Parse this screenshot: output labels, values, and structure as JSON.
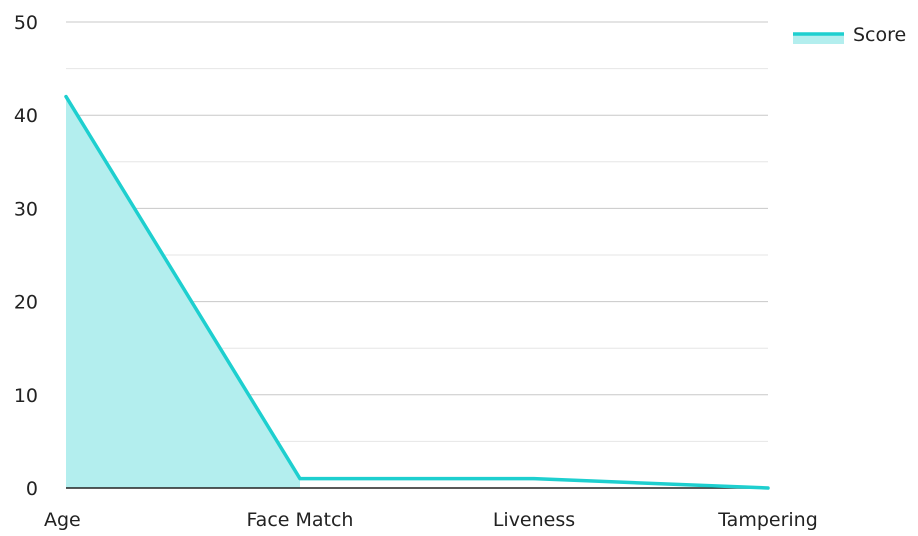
{
  "chart_data": {
    "type": "area",
    "title": "",
    "xlabel": "",
    "ylabel": "",
    "categories": [
      "Age",
      "Face Match",
      "Liveness",
      "Tampering"
    ],
    "series": [
      {
        "name": "Score",
        "values": [
          42,
          1,
          1,
          0
        ]
      }
    ],
    "ylim": [
      0,
      50
    ],
    "y_ticks": [
      "0",
      "10",
      "20",
      "30",
      "40",
      "50"
    ],
    "grid": true,
    "legend_position": "top-right",
    "colors": {
      "line": "#1ecfcf",
      "fill_area": "#b3eeee",
      "grid_major": "#c8c8c8",
      "grid_minor": "#e6e6e6",
      "axis": "#222222"
    },
    "fill_visible_until_index": 1
  }
}
